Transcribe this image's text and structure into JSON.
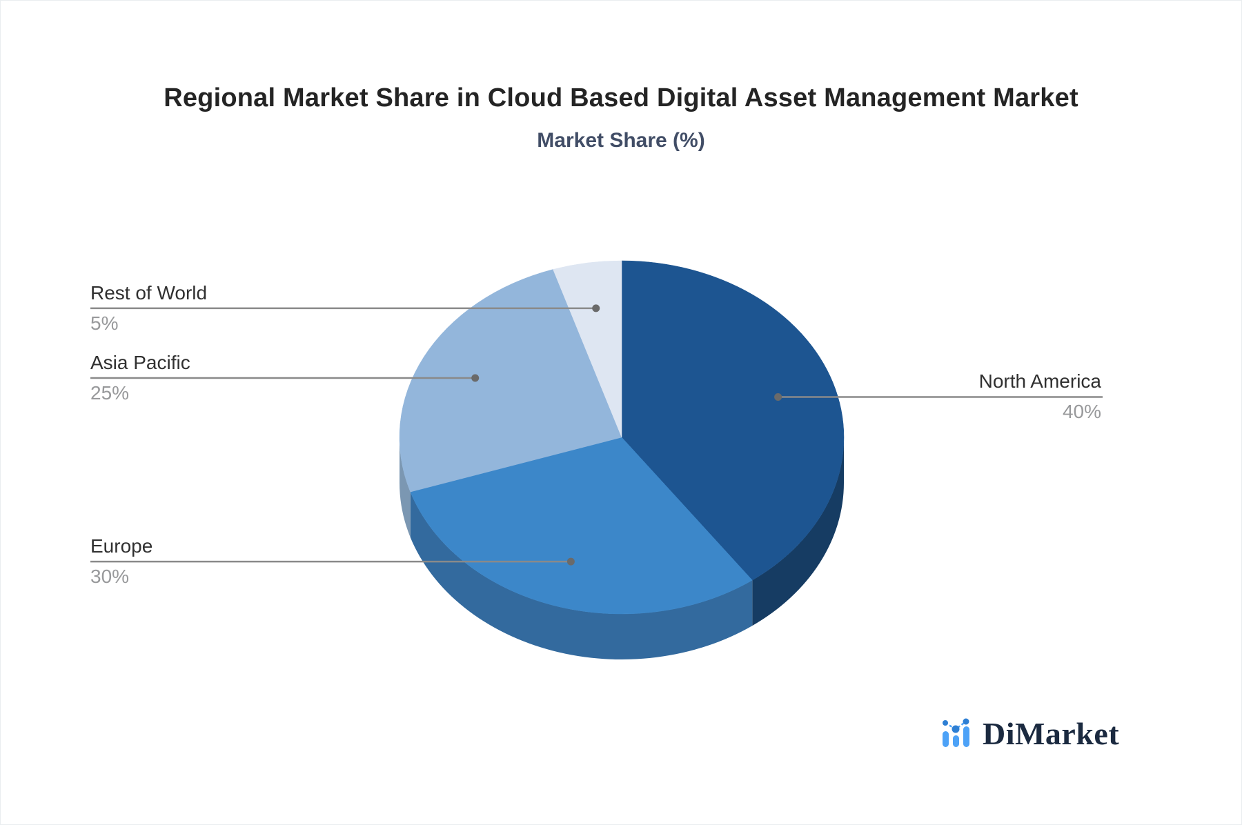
{
  "header": {
    "title": "Regional Market Share in Cloud Based Digital Asset Management Market",
    "subtitle": "Market Share (%)"
  },
  "chart_data": {
    "type": "pie",
    "style": "3d",
    "title": "Regional Market Share in Cloud Based Digital Asset Management Market",
    "subtitle": "Market Share (%)",
    "unit": "%",
    "start_angle": "12-o'clock",
    "direction": "clockwise",
    "legend": "none",
    "categories": [
      "North America",
      "Europe",
      "Asia Pacific",
      "Rest of World"
    ],
    "values": [
      40,
      30,
      25,
      5
    ],
    "slices": [
      {
        "label": "North America",
        "value": 40,
        "display": "40%",
        "color": "#1d5591",
        "side_color": "#163c63",
        "callout_side": "right"
      },
      {
        "label": "Europe",
        "value": 30,
        "display": "30%",
        "color": "#3c87c9",
        "side_color": "#336a9e",
        "callout_side": "left"
      },
      {
        "label": "Asia Pacific",
        "value": 25,
        "display": "25%",
        "color": "#93b6db",
        "side_color": "#7b97b2",
        "callout_side": "left"
      },
      {
        "label": "Rest of World",
        "value": 5,
        "display": "5%",
        "color": "#dee6f2",
        "side_color": "#bac6d8",
        "callout_side": "left"
      }
    ],
    "callout_line_color": "#8a8a8a",
    "callout_dot_color": "#6a6a6a",
    "label_color": "#303030",
    "percent_color": "#98999b"
  },
  "branding": {
    "logo_text": "DiMarket",
    "logo_text_color": "#1b2a40",
    "icon_bar_color": "#4da2f7",
    "icon_dot_color": "#2e7fd4"
  }
}
